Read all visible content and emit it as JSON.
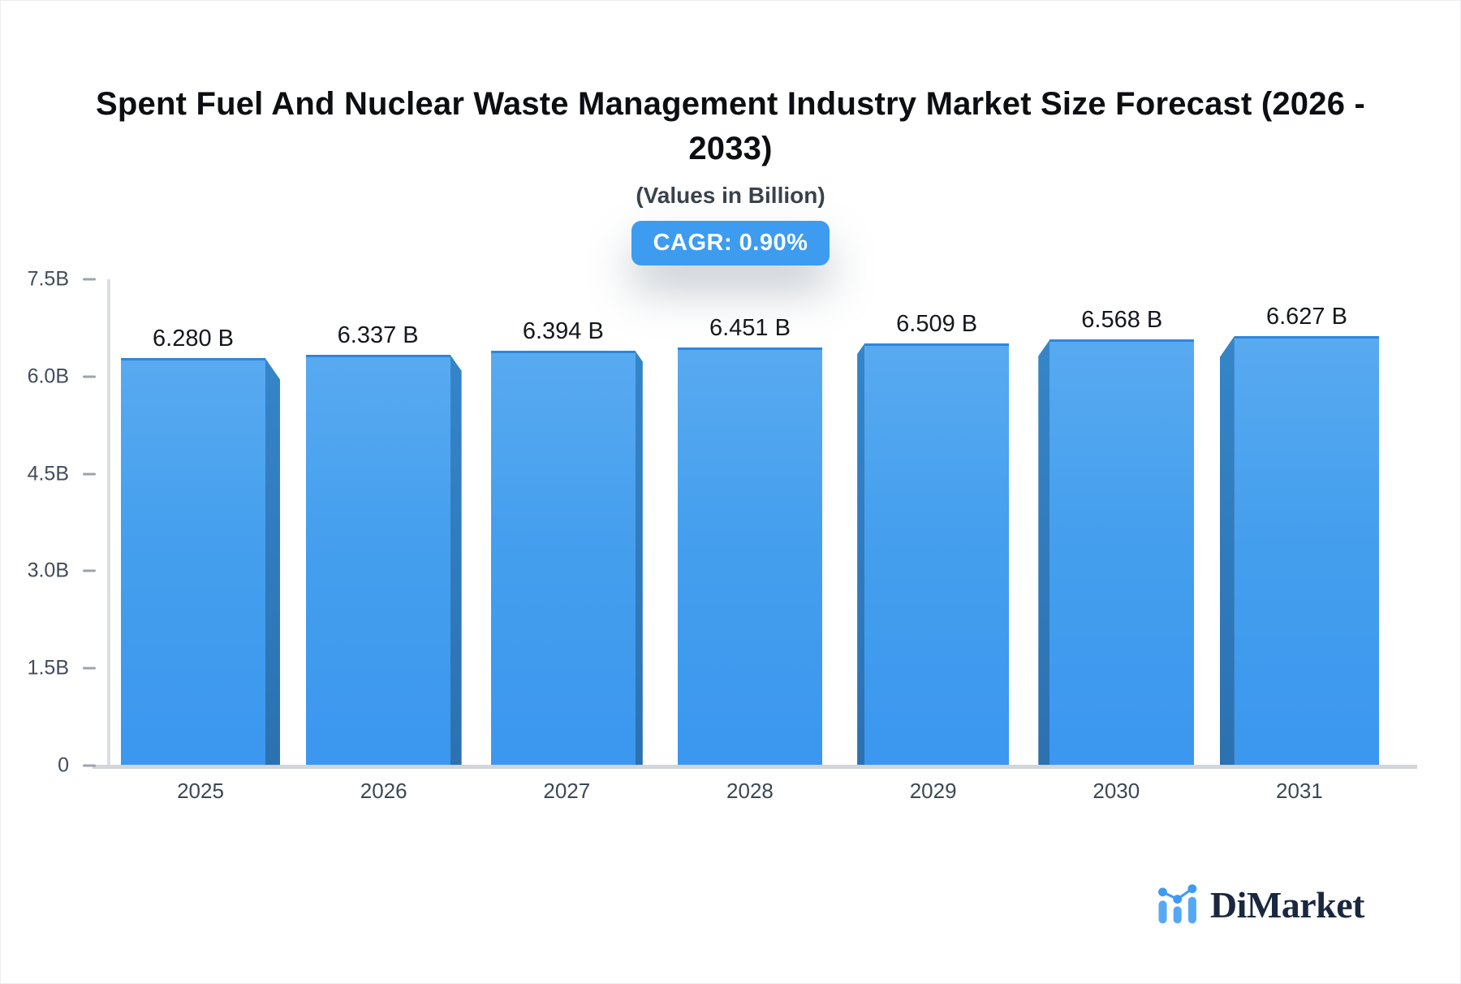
{
  "header": {
    "title_line1": "Spent Fuel And Nuclear Waste Management Industry Market Size Forecast (2026 -",
    "title_line2": "2033)",
    "subtitle": "(Values in Billion)",
    "cagr_badge": "CAGR: 0.90%"
  },
  "chart_data": {
    "type": "bar",
    "title": "Spent Fuel And Nuclear Waste Management Industry Market Size Forecast (2026 - 2033)",
    "subtitle": "(Values in Billion)",
    "annotation": "CAGR: 0.90%",
    "cagr_percent": 0.9,
    "unit": "Billion",
    "categories": [
      "2025",
      "2026",
      "2027",
      "2028",
      "2029",
      "2030",
      "2031"
    ],
    "values": [
      6.28,
      6.337,
      6.394,
      6.451,
      6.509,
      6.568,
      6.627
    ],
    "value_labels": [
      "6.280 B",
      "6.337 B",
      "6.394 B",
      "6.451 B",
      "6.509 B",
      "6.568 B",
      "6.627 B"
    ],
    "y_axis": {
      "min": 0,
      "max": 7.5,
      "ticks": [
        {
          "value": 7.5,
          "label": "7.5B"
        },
        {
          "value": 6.0,
          "label": "6.0B"
        },
        {
          "value": 4.5,
          "label": "4.5B"
        },
        {
          "value": 3.0,
          "label": "3.0B"
        },
        {
          "value": 1.5,
          "label": "1.5B"
        },
        {
          "value": 0,
          "label": "0"
        }
      ]
    },
    "grid": false,
    "legend": false,
    "colors": {
      "bar_front": "#3f9bef",
      "bar_side": "#2e78ba",
      "bar_top_edge": "#2f86db",
      "badge_background": "#3d9cf0",
      "axis_line": "#d5d8dc"
    }
  },
  "branding": {
    "logo_text": "DiMarket",
    "logo_icon": "bar-line-chart-icon",
    "logo_text_color": "#1a2740",
    "logo_icon_color": "#4da4f5"
  }
}
